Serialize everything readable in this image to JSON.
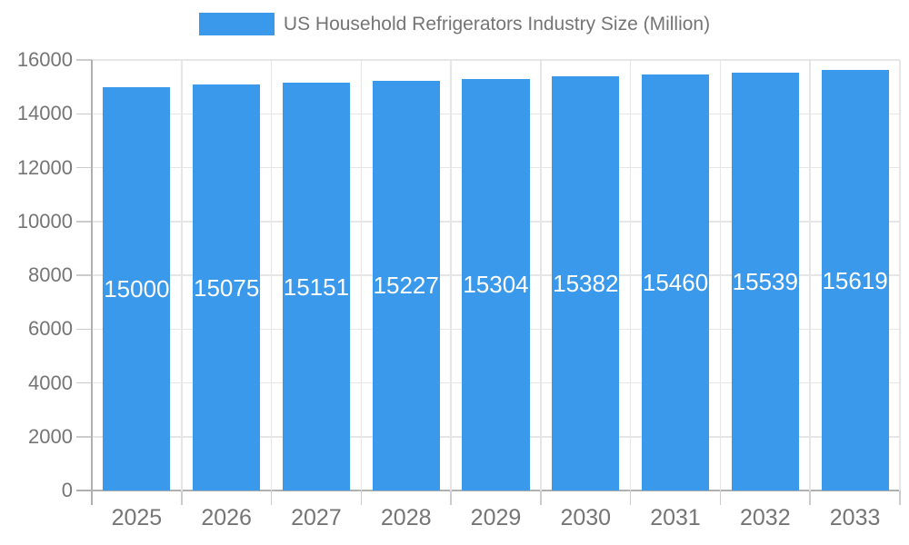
{
  "page": {
    "background": "#ffffff"
  },
  "legend": {
    "label": "US Household Refrigerators Industry Size (Million)"
  },
  "chart_data": {
    "type": "bar",
    "title": "US Household Refrigerators Industry Size (Million)",
    "series_name": "US Household Refrigerators Industry Size (Million)",
    "categories": [
      "2025",
      "2026",
      "2027",
      "2028",
      "2029",
      "2030",
      "2031",
      "2032",
      "2033"
    ],
    "values": [
      15000,
      15075,
      15151,
      15227,
      15304,
      15382,
      15460,
      15539,
      15619
    ],
    "value_labels": [
      "15000",
      "15075",
      "15151",
      "15227",
      "15304",
      "15382",
      "15460",
      "15539",
      "15619"
    ],
    "ylim": [
      0,
      16000
    ],
    "ytick_step": 2000,
    "ytick_labels": [
      "0",
      "2000",
      "4000",
      "6000",
      "8000",
      "10000",
      "12000",
      "14000",
      "16000"
    ],
    "grid": true,
    "legend_position": "top-center",
    "bar_color": "#3b99eb",
    "value_label_color": "#ffffff",
    "axis_text_color": "#757575",
    "gridline_color": "#e6e6e6",
    "tick_color": "#cccccc",
    "axis_line_color": "#b0b0b0",
    "background_color": "#ffffff"
  }
}
